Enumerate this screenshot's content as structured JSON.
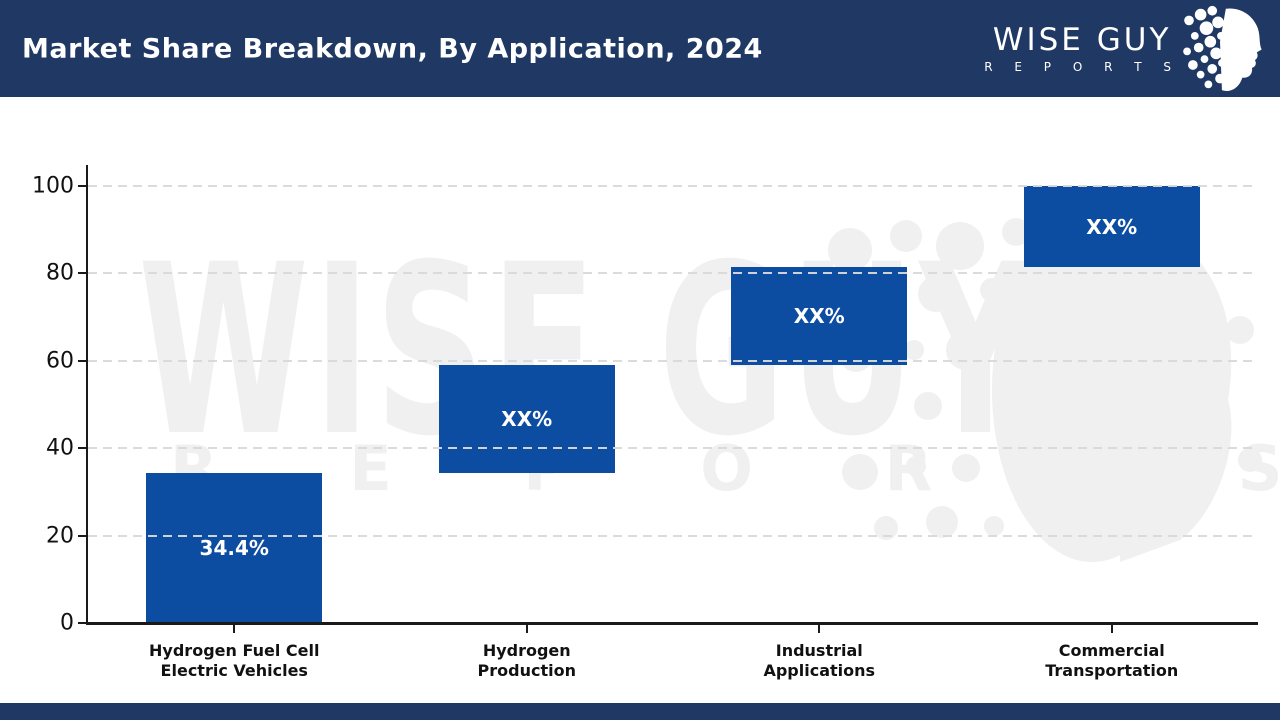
{
  "colors": {
    "header_bg": "#1f3864",
    "bar_fill": "#0c4da2",
    "bar_label_text": "#ffffff",
    "watermark": "#f0f0f0",
    "gridline": "#d9d9d9",
    "axis": "#1a1a1a",
    "tick_text": "#111111"
  },
  "header": {
    "title": "Market Share Breakdown, By Application, 2024",
    "logo": {
      "wordmark": "WISE GUY",
      "subtext": "R E P O R T S",
      "head_icon": "dotted-head-profile"
    }
  },
  "watermark": {
    "line1": "WISE GUY",
    "line2": "R E P O R T S",
    "graphic": "dotted-head-profile"
  },
  "chart_data": {
    "type": "bar",
    "subtype": "waterfall-floating-bars",
    "title": "Market Share Breakdown, By Application, 2024",
    "xlabel": "",
    "ylabel": "",
    "categories": [
      "Hydrogen Fuel Cell\nElectric Vehicles",
      "Hydrogen\nProduction",
      "Industrial\nApplications",
      "Commercial\nTransportation"
    ],
    "segments": [
      {
        "category": "Hydrogen Fuel Cell Electric Vehicles",
        "start": 0,
        "end": 34.4,
        "label": "34.4%"
      },
      {
        "category": "Hydrogen Production",
        "start": 34.4,
        "end": 59,
        "label": "XX%"
      },
      {
        "category": "Industrial Applications",
        "start": 59,
        "end": 81.4,
        "label": "XX%"
      },
      {
        "category": "Commercial Transportation",
        "start": 81.4,
        "end": 100,
        "label": "XX%"
      }
    ],
    "yticks": [
      0,
      20,
      40,
      60,
      80,
      100
    ],
    "ylim": [
      0,
      104
    ],
    "grid": "horizontal-dashed-over-bars",
    "legend": "none"
  }
}
